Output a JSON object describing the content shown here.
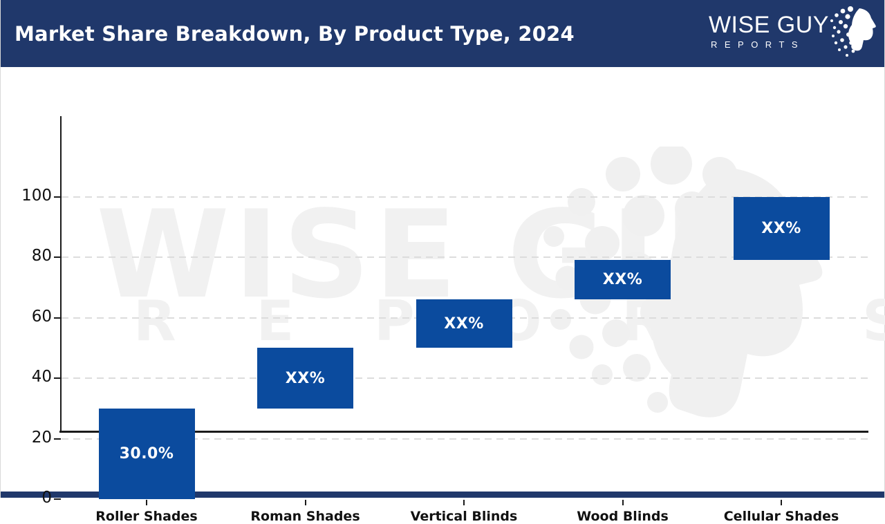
{
  "header": {
    "title": "Market Share Breakdown, By Product Type, 2024"
  },
  "logo": {
    "line1": "WISE GUY",
    "line2": "REPORTS",
    "face_icon": "dotted-head-profile"
  },
  "watermark": {
    "line1": "WISE GUY",
    "line2": "R E P O R T S",
    "face_icon": "dotted-head-profile"
  },
  "colors": {
    "navy_header": "#20386b",
    "bar_blue": "#0b4b9e",
    "gridline": "#dcdcdc",
    "axis": "#1a1a1a",
    "watermark_gray": "#f1f1f1",
    "page_border": "#d9d9d9"
  },
  "chart_data": {
    "type": "bar",
    "subtype": "waterfall-stacked-percentage",
    "title": "Market Share Breakdown, By Product Type, 2024",
    "categories": [
      "Roller Shades",
      "Roman Shades",
      "Vertical Blinds",
      "Wood Blinds",
      "Cellular Shades"
    ],
    "series": [
      {
        "name": "Market Share (%)",
        "segments": [
          {
            "category": "Roller Shades",
            "from": 0,
            "to": 30,
            "value": 30,
            "label": "30.0%"
          },
          {
            "category": "Roman Shades",
            "from": 30,
            "to": 50,
            "value": 20,
            "label": "XX%"
          },
          {
            "category": "Vertical Blinds",
            "from": 50,
            "to": 66,
            "value": 16,
            "label": "XX%"
          },
          {
            "category": "Wood Blinds",
            "from": 66,
            "to": 79,
            "value": 13,
            "label": "XX%"
          },
          {
            "category": "Cellular Shades",
            "from": 79,
            "to": 100,
            "value": 21,
            "label": "XX%"
          }
        ]
      }
    ],
    "xlabel": "",
    "ylabel": "",
    "yticks": [
      0,
      20,
      40,
      60,
      80,
      100
    ],
    "ylim": [
      0,
      104.5
    ],
    "grid": true,
    "grid_style": "dashed-horizontal",
    "legend": false,
    "bar_labels_inside": true
  }
}
